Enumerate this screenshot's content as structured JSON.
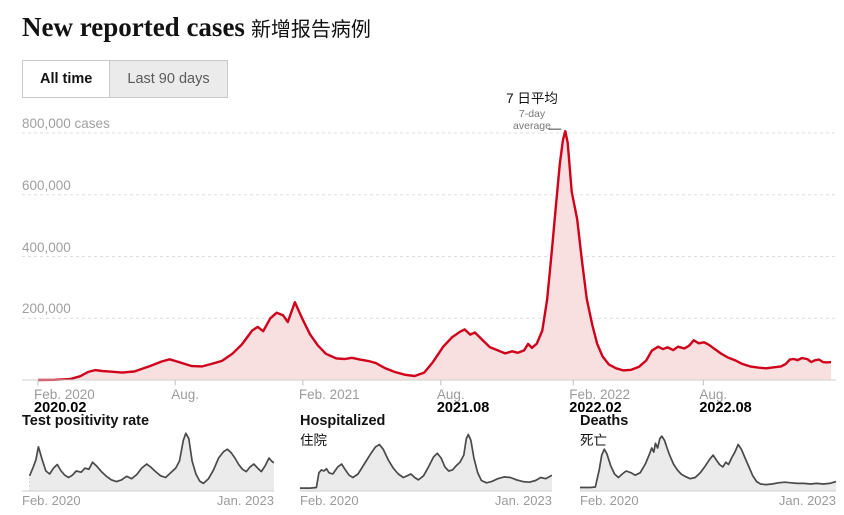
{
  "header": {
    "title_en": "New reported cases",
    "title_zh": "新增报告病例"
  },
  "tabs": {
    "all_time": "All time",
    "last_90": "Last 90 days",
    "active": "All time"
  },
  "main_chart": {
    "annotation": {
      "zh": "7 日平均",
      "en_line1": "7-day",
      "en_line2": "average"
    },
    "x_axis": {
      "ticks": [
        {
          "en": "Feb. 2020",
          "zh": "2020.02",
          "frac": 0.0
        },
        {
          "en": "Aug.",
          "zh": null,
          "frac": 0.173
        },
        {
          "en": "Feb. 2021",
          "zh": null,
          "frac": 0.334
        },
        {
          "en": "Aug.",
          "zh": "2021.08",
          "frac": 0.508
        },
        {
          "en": "Feb. 2022",
          "zh": "2022.02",
          "frac": 0.675
        },
        {
          "en": "Aug.",
          "zh": "2022.08",
          "frac": 0.839
        }
      ]
    }
  },
  "small_charts": [
    {
      "title": "Test positivity rate",
      "subtitle": null,
      "x_left": "Feb. 2020",
      "x_right": "Jan. 2023"
    },
    {
      "title": "Hospitalized",
      "subtitle": "住院",
      "x_left": "Feb. 2020",
      "x_right": "Jan. 2023"
    },
    {
      "title": "Deaths",
      "subtitle": "死亡",
      "x_left": "Feb. 2020",
      "x_right": "Jan. 2023"
    }
  ],
  "colors": {
    "case_line": "#d0021b",
    "case_fill": "#f8e0e0",
    "small_line": "#4a4a4a",
    "small_fill": "#ebebeb",
    "grid": "#dedede",
    "axis": "#cfcfcf",
    "tick": "#c0c0c0",
    "label_gray": "#9b9b9b",
    "label_black": "#000000",
    "connector": "#444444"
  },
  "chart_data": [
    {
      "type": "area",
      "name": "New reported cases, 7-day average",
      "x_range": [
        "Feb. 2020",
        "Jan. 2023"
      ],
      "y_unit": "cases",
      "ylim": [
        0,
        800000
      ],
      "grid": "dashed-horizontal",
      "y_ticks": [
        {
          "value": 800000,
          "label": "800,000 cases"
        },
        {
          "value": 600000,
          "label": "600,000"
        },
        {
          "value": 400000,
          "label": "400,000"
        },
        {
          "value": 200000,
          "label": "200,000"
        }
      ],
      "peak": {
        "frac": 0.665,
        "value": 806000,
        "note": "7-day average (Omicron peak, Jan. 2022)"
      },
      "points": [
        [
          0.0,
          0
        ],
        [
          0.021,
          500
        ],
        [
          0.04,
          3000
        ],
        [
          0.053,
          12000
        ],
        [
          0.063,
          26000
        ],
        [
          0.072,
          32000
        ],
        [
          0.081,
          29000
        ],
        [
          0.093,
          27000
        ],
        [
          0.106,
          24000
        ],
        [
          0.122,
          28000
        ],
        [
          0.141,
          45000
        ],
        [
          0.156,
          60000
        ],
        [
          0.166,
          67000
        ],
        [
          0.179,
          57000
        ],
        [
          0.194,
          45000
        ],
        [
          0.207,
          44000
        ],
        [
          0.219,
          52000
        ],
        [
          0.232,
          62000
        ],
        [
          0.245,
          85000
        ],
        [
          0.257,
          115000
        ],
        [
          0.27,
          160000
        ],
        [
          0.277,
          172000
        ],
        [
          0.284,
          158000
        ],
        [
          0.293,
          200000
        ],
        [
          0.301,
          218000
        ],
        [
          0.309,
          210000
        ],
        [
          0.315,
          188000
        ],
        [
          0.324,
          252000
        ],
        [
          0.333,
          200000
        ],
        [
          0.343,
          148000
        ],
        [
          0.353,
          112000
        ],
        [
          0.363,
          85000
        ],
        [
          0.376,
          70000
        ],
        [
          0.387,
          68000
        ],
        [
          0.396,
          72000
        ],
        [
          0.406,
          66000
        ],
        [
          0.416,
          62000
        ],
        [
          0.426,
          55000
        ],
        [
          0.438,
          38000
        ],
        [
          0.45,
          26000
        ],
        [
          0.463,
          17000
        ],
        [
          0.475,
          13000
        ],
        [
          0.487,
          24000
        ],
        [
          0.498,
          58000
        ],
        [
          0.511,
          108000
        ],
        [
          0.522,
          138000
        ],
        [
          0.532,
          156000
        ],
        [
          0.538,
          164000
        ],
        [
          0.545,
          147000
        ],
        [
          0.551,
          154000
        ],
        [
          0.56,
          131000
        ],
        [
          0.57,
          106000
        ],
        [
          0.58,
          96000
        ],
        [
          0.589,
          86000
        ],
        [
          0.598,
          93000
        ],
        [
          0.605,
          88000
        ],
        [
          0.613,
          96000
        ],
        [
          0.618,
          117000
        ],
        [
          0.623,
          104000
        ],
        [
          0.629,
          118000
        ],
        [
          0.636,
          160000
        ],
        [
          0.642,
          260000
        ],
        [
          0.648,
          420000
        ],
        [
          0.653,
          560000
        ],
        [
          0.658,
          700000
        ],
        [
          0.662,
          778000
        ],
        [
          0.665,
          806000
        ],
        [
          0.668,
          768000
        ],
        [
          0.673,
          610000
        ],
        [
          0.68,
          520000
        ],
        [
          0.686,
          385000
        ],
        [
          0.692,
          262000
        ],
        [
          0.699,
          178000
        ],
        [
          0.705,
          118000
        ],
        [
          0.712,
          76000
        ],
        [
          0.72,
          50000
        ],
        [
          0.729,
          38000
        ],
        [
          0.738,
          31000
        ],
        [
          0.748,
          33000
        ],
        [
          0.758,
          43000
        ],
        [
          0.767,
          63000
        ],
        [
          0.774,
          95000
        ],
        [
          0.782,
          108000
        ],
        [
          0.788,
          100000
        ],
        [
          0.794,
          106000
        ],
        [
          0.801,
          97000
        ],
        [
          0.807,
          108000
        ],
        [
          0.815,
          102000
        ],
        [
          0.821,
          111000
        ],
        [
          0.827,
          129000
        ],
        [
          0.833,
          119000
        ],
        [
          0.84,
          122000
        ],
        [
          0.846,
          114000
        ],
        [
          0.854,
          99000
        ],
        [
          0.861,
          86000
        ],
        [
          0.87,
          73000
        ],
        [
          0.879,
          64000
        ],
        [
          0.888,
          52000
        ],
        [
          0.898,
          44000
        ],
        [
          0.908,
          40000
        ],
        [
          0.918,
          38000
        ],
        [
          0.928,
          41000
        ],
        [
          0.937,
          44000
        ],
        [
          0.943,
          52000
        ],
        [
          0.948,
          66000
        ],
        [
          0.953,
          68000
        ],
        [
          0.958,
          64000
        ],
        [
          0.963,
          71000
        ],
        [
          0.97,
          68000
        ],
        [
          0.975,
          58000
        ],
        [
          0.98,
          64000
        ],
        [
          0.985,
          66000
        ],
        [
          0.99,
          58000
        ],
        [
          0.995,
          57000
        ],
        [
          1.0,
          58000
        ]
      ]
    },
    {
      "type": "area",
      "name": "Test positivity rate",
      "x_range": [
        "Feb. 2020",
        "Jan. 2023"
      ],
      "values_normalized": true,
      "points": [
        [
          0.03,
          0.25
        ],
        [
          0.045,
          0.4
        ],
        [
          0.055,
          0.52
        ],
        [
          0.065,
          0.74
        ],
        [
          0.08,
          0.52
        ],
        [
          0.095,
          0.33
        ],
        [
          0.11,
          0.28
        ],
        [
          0.125,
          0.38
        ],
        [
          0.14,
          0.44
        ],
        [
          0.155,
          0.33
        ],
        [
          0.17,
          0.26
        ],
        [
          0.185,
          0.22
        ],
        [
          0.2,
          0.26
        ],
        [
          0.215,
          0.33
        ],
        [
          0.235,
          0.31
        ],
        [
          0.25,
          0.38
        ],
        [
          0.265,
          0.36
        ],
        [
          0.28,
          0.48
        ],
        [
          0.295,
          0.42
        ],
        [
          0.315,
          0.32
        ],
        [
          0.335,
          0.24
        ],
        [
          0.355,
          0.18
        ],
        [
          0.375,
          0.15
        ],
        [
          0.395,
          0.18
        ],
        [
          0.415,
          0.24
        ],
        [
          0.435,
          0.2
        ],
        [
          0.455,
          0.27
        ],
        [
          0.475,
          0.38
        ],
        [
          0.495,
          0.45
        ],
        [
          0.51,
          0.4
        ],
        [
          0.53,
          0.32
        ],
        [
          0.55,
          0.25
        ],
        [
          0.57,
          0.22
        ],
        [
          0.59,
          0.3
        ],
        [
          0.61,
          0.38
        ],
        [
          0.625,
          0.5
        ],
        [
          0.64,
          0.85
        ],
        [
          0.65,
          0.97
        ],
        [
          0.662,
          0.88
        ],
        [
          0.675,
          0.5
        ],
        [
          0.69,
          0.28
        ],
        [
          0.705,
          0.16
        ],
        [
          0.72,
          0.12
        ],
        [
          0.74,
          0.2
        ],
        [
          0.76,
          0.35
        ],
        [
          0.78,
          0.55
        ],
        [
          0.8,
          0.66
        ],
        [
          0.815,
          0.7
        ],
        [
          0.83,
          0.64
        ],
        [
          0.845,
          0.55
        ],
        [
          0.86,
          0.44
        ],
        [
          0.875,
          0.36
        ],
        [
          0.89,
          0.32
        ],
        [
          0.905,
          0.4
        ],
        [
          0.92,
          0.45
        ],
        [
          0.935,
          0.38
        ],
        [
          0.95,
          0.32
        ],
        [
          0.965,
          0.42
        ],
        [
          0.98,
          0.55
        ],
        [
          0.99,
          0.5
        ],
        [
          1.0,
          0.47
        ]
      ]
    },
    {
      "type": "area",
      "name": "Hospitalized",
      "x_range": [
        "Feb. 2020",
        "Jan. 2023"
      ],
      "values_normalized": true,
      "points": [
        [
          0.0,
          0.04
        ],
        [
          0.04,
          0.04
        ],
        [
          0.065,
          0.05
        ],
        [
          0.075,
          0.3
        ],
        [
          0.085,
          0.35
        ],
        [
          0.095,
          0.33
        ],
        [
          0.105,
          0.37
        ],
        [
          0.115,
          0.3
        ],
        [
          0.13,
          0.28
        ],
        [
          0.15,
          0.4
        ],
        [
          0.165,
          0.45
        ],
        [
          0.18,
          0.35
        ],
        [
          0.195,
          0.26
        ],
        [
          0.21,
          0.22
        ],
        [
          0.23,
          0.28
        ],
        [
          0.255,
          0.45
        ],
        [
          0.28,
          0.62
        ],
        [
          0.3,
          0.74
        ],
        [
          0.315,
          0.78
        ],
        [
          0.33,
          0.7
        ],
        [
          0.35,
          0.52
        ],
        [
          0.37,
          0.38
        ],
        [
          0.39,
          0.28
        ],
        [
          0.41,
          0.22
        ],
        [
          0.425,
          0.25
        ],
        [
          0.44,
          0.28
        ],
        [
          0.455,
          0.22
        ],
        [
          0.47,
          0.18
        ],
        [
          0.49,
          0.25
        ],
        [
          0.51,
          0.4
        ],
        [
          0.53,
          0.57
        ],
        [
          0.545,
          0.63
        ],
        [
          0.56,
          0.55
        ],
        [
          0.575,
          0.4
        ],
        [
          0.59,
          0.33
        ],
        [
          0.605,
          0.35
        ],
        [
          0.62,
          0.42
        ],
        [
          0.635,
          0.48
        ],
        [
          0.65,
          0.6
        ],
        [
          0.66,
          0.88
        ],
        [
          0.668,
          0.95
        ],
        [
          0.678,
          0.85
        ],
        [
          0.69,
          0.55
        ],
        [
          0.705,
          0.3
        ],
        [
          0.72,
          0.17
        ],
        [
          0.74,
          0.13
        ],
        [
          0.76,
          0.15
        ],
        [
          0.785,
          0.2
        ],
        [
          0.81,
          0.23
        ],
        [
          0.835,
          0.22
        ],
        [
          0.86,
          0.18
        ],
        [
          0.885,
          0.15
        ],
        [
          0.91,
          0.14
        ],
        [
          0.935,
          0.17
        ],
        [
          0.955,
          0.22
        ],
        [
          0.975,
          0.2
        ],
        [
          1.0,
          0.26
        ]
      ]
    },
    {
      "type": "area",
      "name": "Deaths",
      "x_range": [
        "Feb. 2020",
        "Jan. 2023"
      ],
      "values_normalized": true,
      "points": [
        [
          0.0,
          0.05
        ],
        [
          0.04,
          0.05
        ],
        [
          0.06,
          0.06
        ],
        [
          0.075,
          0.35
        ],
        [
          0.085,
          0.6
        ],
        [
          0.095,
          0.7
        ],
        [
          0.105,
          0.62
        ],
        [
          0.12,
          0.42
        ],
        [
          0.135,
          0.28
        ],
        [
          0.15,
          0.22
        ],
        [
          0.165,
          0.28
        ],
        [
          0.18,
          0.33
        ],
        [
          0.2,
          0.3
        ],
        [
          0.215,
          0.26
        ],
        [
          0.235,
          0.3
        ],
        [
          0.255,
          0.45
        ],
        [
          0.27,
          0.6
        ],
        [
          0.28,
          0.72
        ],
        [
          0.288,
          0.65
        ],
        [
          0.295,
          0.8
        ],
        [
          0.303,
          0.72
        ],
        [
          0.312,
          0.88
        ],
        [
          0.32,
          0.92
        ],
        [
          0.33,
          0.85
        ],
        [
          0.34,
          0.72
        ],
        [
          0.35,
          0.6
        ],
        [
          0.365,
          0.45
        ],
        [
          0.38,
          0.35
        ],
        [
          0.395,
          0.28
        ],
        [
          0.41,
          0.24
        ],
        [
          0.43,
          0.2
        ],
        [
          0.45,
          0.22
        ],
        [
          0.47,
          0.3
        ],
        [
          0.49,
          0.42
        ],
        [
          0.505,
          0.52
        ],
        [
          0.52,
          0.6
        ],
        [
          0.532,
          0.52
        ],
        [
          0.545,
          0.44
        ],
        [
          0.558,
          0.4
        ],
        [
          0.57,
          0.48
        ],
        [
          0.58,
          0.44
        ],
        [
          0.592,
          0.55
        ],
        [
          0.605,
          0.65
        ],
        [
          0.618,
          0.78
        ],
        [
          0.63,
          0.7
        ],
        [
          0.645,
          0.55
        ],
        [
          0.66,
          0.4
        ],
        [
          0.675,
          0.25
        ],
        [
          0.69,
          0.15
        ],
        [
          0.705,
          0.11
        ],
        [
          0.725,
          0.1
        ],
        [
          0.75,
          0.11
        ],
        [
          0.775,
          0.13
        ],
        [
          0.8,
          0.14
        ],
        [
          0.825,
          0.13
        ],
        [
          0.85,
          0.12
        ],
        [
          0.875,
          0.12
        ],
        [
          0.9,
          0.11
        ],
        [
          0.925,
          0.12
        ],
        [
          0.95,
          0.11
        ],
        [
          0.975,
          0.12
        ],
        [
          1.0,
          0.15
        ]
      ]
    }
  ]
}
